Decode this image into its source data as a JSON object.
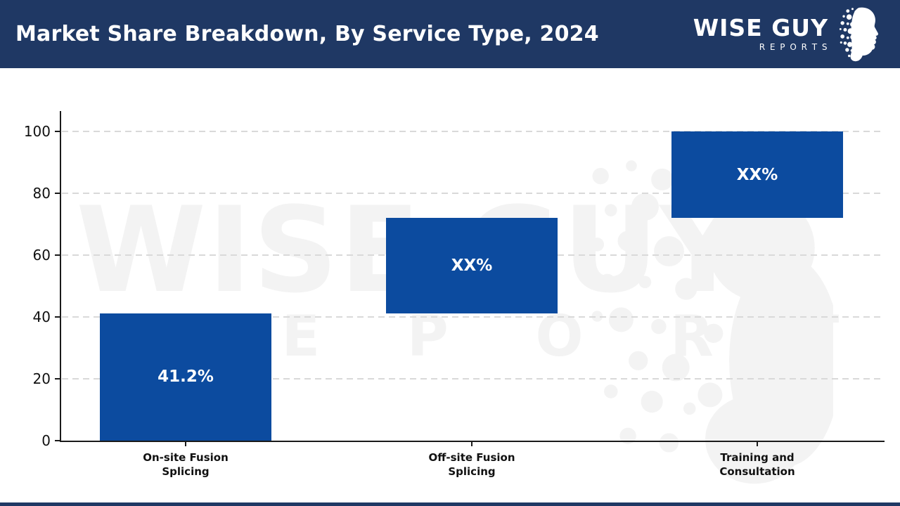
{
  "header": {
    "title": "Market Share Breakdown, By Service Type, 2024",
    "background_color": "#1f3864",
    "logo": {
      "wordmark": "WISE GUY",
      "subtext": "R E P O R T S",
      "icon": "dotted-face-profile"
    }
  },
  "watermark": {
    "wordmark": "WISE GUY",
    "subtext": "R E P O R T S"
  },
  "chart_data": {
    "type": "bar",
    "subtype": "waterfall (stacked market-share breakdown, cumulative to 100%)",
    "title": "Market Share Breakdown, By Service Type, 2024",
    "categories": [
      "On-site Fusion Splicing",
      "Off-site Fusion Splicing",
      "Training and Consultation"
    ],
    "category_label_lines": [
      [
        "On-site Fusion",
        "Splicing"
      ],
      [
        "Off-site Fusion",
        "Splicing"
      ],
      [
        "Training and",
        "Consultation"
      ]
    ],
    "segments": [
      {
        "category": "On-site Fusion Splicing",
        "start": 0,
        "end": 41.2,
        "value_label": "41.2%"
      },
      {
        "category": "Off-site Fusion Splicing",
        "start": 41.2,
        "end": 72,
        "value_label": "XX%"
      },
      {
        "category": "Training and Consultation",
        "start": 72,
        "end": 100,
        "value_label": "XX%"
      }
    ],
    "xlabel": "",
    "ylabel": "",
    "ylim": [
      0,
      100
    ],
    "yticks": [
      0,
      20,
      40,
      60,
      80,
      100
    ],
    "grid": "horizontal dashed",
    "legend": "none",
    "colors": {
      "bar": "#0c4b9f",
      "value_label": "#ffffff",
      "grid": "#d9d9d9",
      "axis": "#1a1a1a",
      "tick_label": "#111111",
      "category_label": "#111111"
    }
  }
}
